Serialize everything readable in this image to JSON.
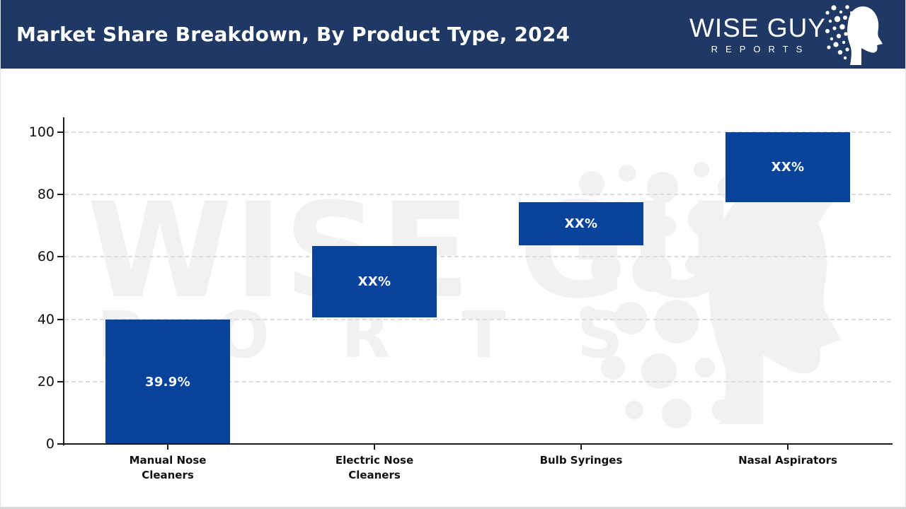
{
  "header": {
    "title": "Market Share Breakdown, By Product Type, 2024",
    "logo": {
      "line1": "WISE GUY",
      "line2": "REPORTS"
    }
  },
  "watermark": {
    "line1": "WISE GUY",
    "line2": "P O R T S"
  },
  "colors": {
    "header_bg": "#1f3864",
    "bar": "#07439b",
    "grid": "#dcdcdd",
    "axis": "#1a1a1a",
    "watermark": "#f1f1f4",
    "bar_label_text": "#ffffff"
  },
  "chart_data": {
    "type": "bar",
    "subtype": "waterfall",
    "title": "Market Share Breakdown, By Product Type, 2024",
    "xlabel": "",
    "ylabel": "",
    "categories": [
      "Manual Nose\nCleaners",
      "Electric Nose\nCleaners",
      "Bulb Syringes",
      "Nasal Aspirators"
    ],
    "bars": [
      {
        "category": "Manual Nose Cleaners",
        "label": "39.9%",
        "start": 0,
        "end": 39.9
      },
      {
        "category": "Electric Nose Cleaners",
        "label": "XX%",
        "start": 40.6,
        "end": 63.5
      },
      {
        "category": "Bulb Syringes",
        "label": "XX%",
        "start": 63.7,
        "end": 77.6
      },
      {
        "category": "Nasal Aspirators",
        "label": "XX%",
        "start": 77.6,
        "end": 100
      }
    ],
    "yticks": [
      0,
      20,
      40,
      60,
      80,
      100
    ],
    "ylim": [
      0,
      104.8
    ],
    "grid": "horizontal-dashed",
    "legend": "none",
    "bar_color": "#07439b"
  }
}
